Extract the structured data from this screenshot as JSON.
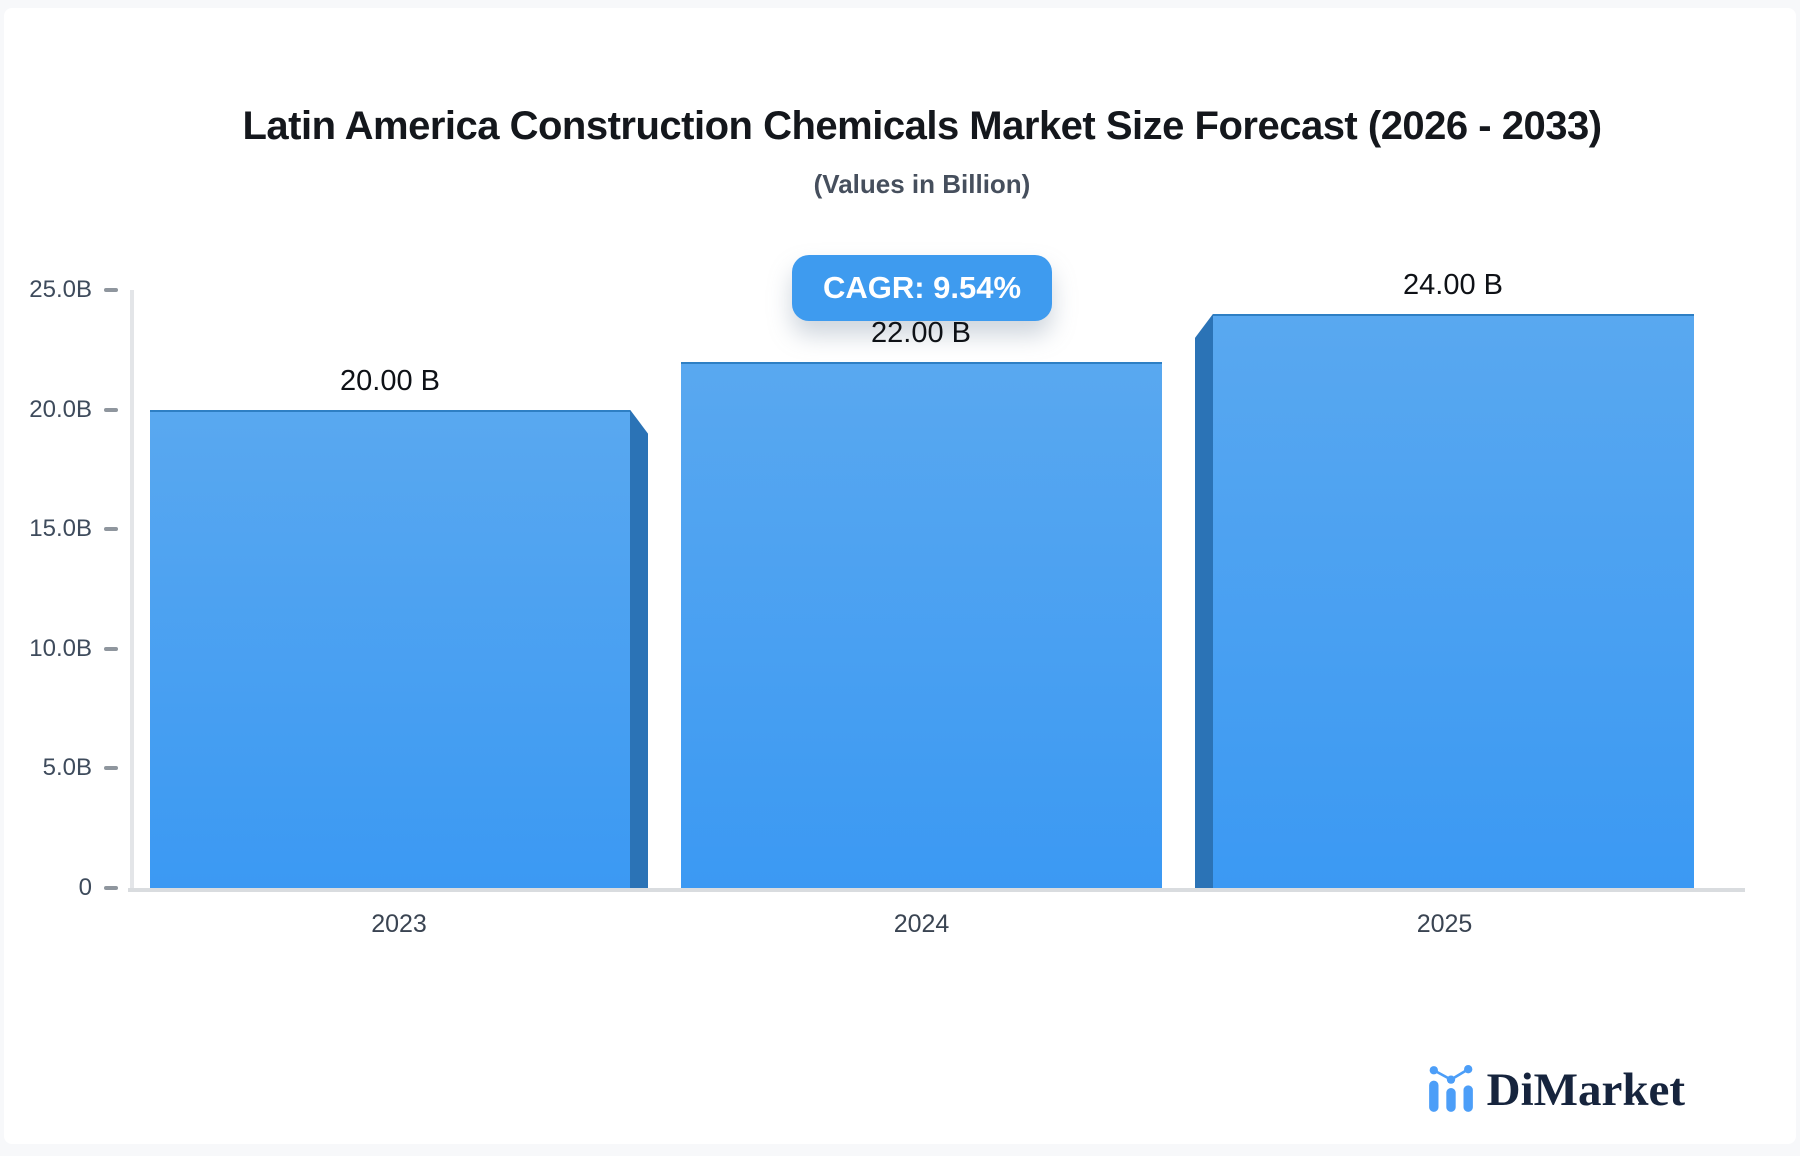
{
  "title": "Latin America Construction Chemicals Market Size Forecast (2026 - 2033)",
  "subtitle": "(Values in Billion)",
  "badge": {
    "text": "CAGR: 9.54%"
  },
  "chart_data": {
    "type": "bar",
    "title": "Latin America Construction Chemicals Market Size Forecast (2026 - 2033)",
    "subtitle": "(Values in Billion)",
    "categories": [
      "2023",
      "2024",
      "2025"
    ],
    "values": [
      20,
      22,
      24
    ],
    "bar_labels": [
      "20.00 B",
      "22.00 B",
      "24.00 B"
    ],
    "cagr_percent": 9.54,
    "xlabel": "",
    "ylabel": "Values in Billion",
    "ylim": [
      0,
      25
    ],
    "yticks": [
      "0",
      "5.0B",
      "10.0B",
      "15.0B",
      "20.0B",
      "25.0B"
    ],
    "grid": false,
    "legend": false,
    "bar_style": "3d-beveled"
  },
  "logo": {
    "text": "DiMarket",
    "icon": "mini-bar-line-chart-icon"
  },
  "colors": {
    "page-bg": "#f7f8fa",
    "card-bg": "#ffffff",
    "bar-top": "#59A8F0",
    "bar-bottom": "#3B99F3",
    "bar-side": "#2B73B6",
    "bar-edge": "#2e7fc4",
    "badge-bg": "#3E9BEF",
    "badge-text": "#ffffff",
    "axis-line": "#e3e5e8",
    "baseline": "#d9dcdf",
    "tick": "#8f969e",
    "title-text": "#14171c",
    "subtitle-text": "#464f5d",
    "ylabel-text": "#3e4b5c",
    "xlabel-text": "#3a4452",
    "value-text": "#0e1116",
    "logo-text": "#16243D",
    "logo-icon": "#4C9EF8"
  }
}
